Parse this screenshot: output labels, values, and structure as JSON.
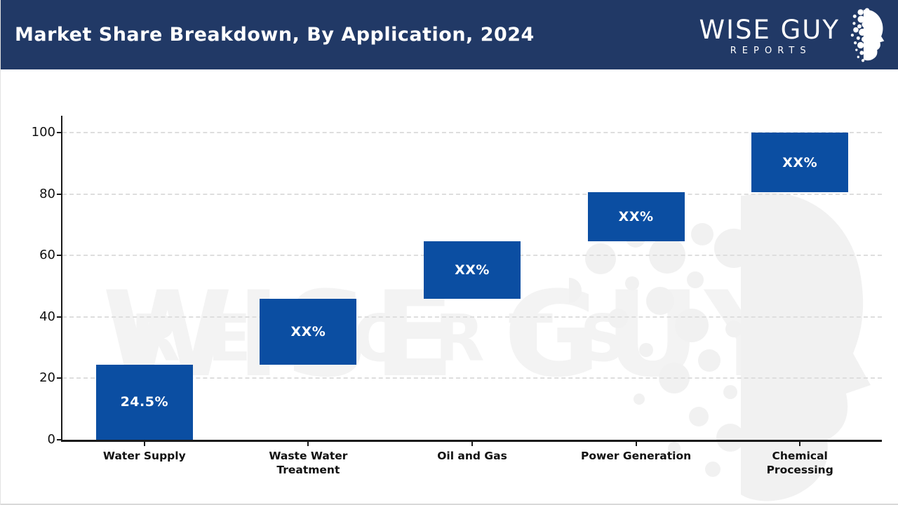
{
  "header": {
    "title": "Market Share Breakdown, By Application, 2024",
    "logo": {
      "line1": "WISE GUY",
      "line2": "REPORTS"
    }
  },
  "watermark": {
    "line1": "WISE GUY",
    "line2": "REPORTS"
  },
  "colors": {
    "header_bg": "#213966",
    "bar": "#0b4ea2",
    "grid": "#dedede",
    "axis": "#1a1a1a",
    "watermark": "#f3f3f3",
    "title_text": "#ffffff",
    "bar_label_text": "#ffffff"
  },
  "chart_data": {
    "type": "bar",
    "subtype": "waterfall-floating-bars",
    "title": "Market Share Breakdown, By Application, 2024",
    "categories": [
      "Water Supply",
      "Waste Water\nTreatment",
      "Oil and Gas",
      "Power Generation",
      "Chemical\nProcessing"
    ],
    "bars": [
      {
        "category": "Water Supply",
        "start": 0,
        "end": 24.5,
        "label": "24.5%"
      },
      {
        "category": "Waste Water Treatment",
        "start": 24.5,
        "end": 46,
        "label": "XX%"
      },
      {
        "category": "Oil and Gas",
        "start": 46,
        "end": 64.5,
        "label": "XX%"
      },
      {
        "category": "Power Generation",
        "start": 64.5,
        "end": 80.5,
        "label": "XX%"
      },
      {
        "category": "Chemical Processing",
        "start": 80.5,
        "end": 100,
        "label": "XX%"
      }
    ],
    "xlabel": "",
    "ylabel": "",
    "ylim": [
      0,
      100
    ],
    "yticks": [
      0,
      20,
      40,
      60,
      80,
      100
    ],
    "grid": "horizontal-dashed",
    "legend": "none"
  }
}
